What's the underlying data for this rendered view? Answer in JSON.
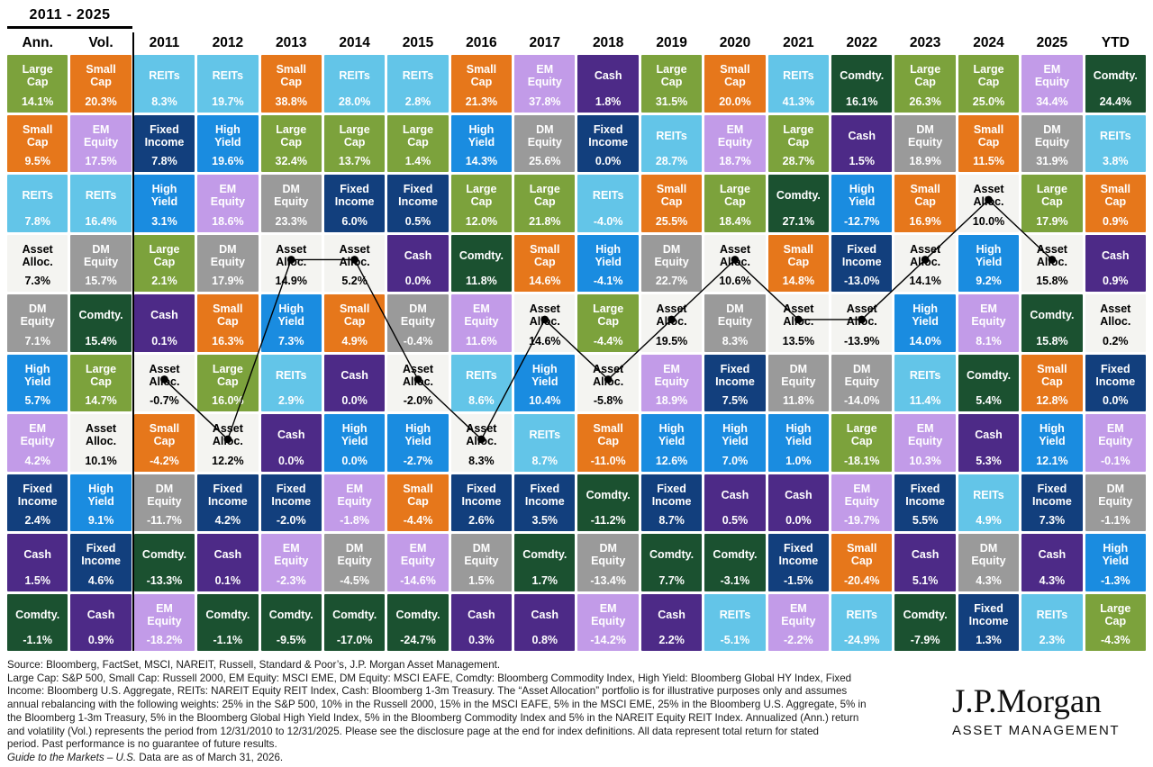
{
  "header": {
    "group_label": "2011 - 2025"
  },
  "asset_styles": {
    "Large Cap": {
      "bg": "#7CA23C",
      "fg": "#FFFFFF"
    },
    "Small Cap": {
      "bg": "#E6771B",
      "fg": "#FFFFFF"
    },
    "REITs": {
      "bg": "#63C5E8",
      "fg": "#FFFFFF"
    },
    "EM Equity": {
      "bg": "#C29BE8",
      "fg": "#FFFFFF"
    },
    "DM Equity": {
      "bg": "#9A9A9A",
      "fg": "#FFFFFF"
    },
    "Fixed Income": {
      "bg": "#123F7D",
      "fg": "#FFFFFF"
    },
    "High Yield": {
      "bg": "#1A8CE0",
      "fg": "#FFFFFF"
    },
    "Cash": {
      "bg": "#4D2A87",
      "fg": "#FFFFFF"
    },
    "Comdty.": {
      "bg": "#1B5130",
      "fg": "#FFFFFF"
    },
    "Asset Alloc.": {
      "bg": "#F4F4F1",
      "fg": "#000000"
    }
  },
  "asset_alloc_line": {
    "color": "#000000",
    "year_columns": [
      "2011",
      "2012",
      "2013",
      "2014",
      "2015",
      "2016",
      "2017",
      "2018",
      "2019",
      "2020",
      "2021",
      "2022",
      "2023",
      "2024",
      "2025"
    ]
  },
  "chart_data": {
    "type": "table",
    "columns": [
      {
        "label": "Ann.",
        "cells": [
          [
            "Large Cap",
            "14.1%"
          ],
          [
            "Small Cap",
            "9.5%"
          ],
          [
            "REITs",
            "7.8%"
          ],
          [
            "Asset Alloc.",
            "7.3%"
          ],
          [
            "DM Equity",
            "7.1%"
          ],
          [
            "High Yield",
            "5.7%"
          ],
          [
            "EM Equity",
            "4.2%"
          ],
          [
            "Fixed Income",
            "2.4%"
          ],
          [
            "Cash",
            "1.5%"
          ],
          [
            "Comdty.",
            "-1.1%"
          ]
        ]
      },
      {
        "label": "Vol.",
        "cells": [
          [
            "Small Cap",
            "20.3%"
          ],
          [
            "EM Equity",
            "17.5%"
          ],
          [
            "REITs",
            "16.4%"
          ],
          [
            "DM Equity",
            "15.7%"
          ],
          [
            "Comdty.",
            "15.4%"
          ],
          [
            "Large Cap",
            "14.7%"
          ],
          [
            "Asset Alloc.",
            "10.1%"
          ],
          [
            "High Yield",
            "9.1%"
          ],
          [
            "Fixed Income",
            "4.6%"
          ],
          [
            "Cash",
            "0.9%"
          ]
        ]
      },
      {
        "label": "2011",
        "cells": [
          [
            "REITs",
            "8.3%"
          ],
          [
            "Fixed Income",
            "7.8%"
          ],
          [
            "High Yield",
            "3.1%"
          ],
          [
            "Large Cap",
            "2.1%"
          ],
          [
            "Cash",
            "0.1%"
          ],
          [
            "Asset Alloc.",
            "-0.7%"
          ],
          [
            "Small Cap",
            "-4.2%"
          ],
          [
            "DM Equity",
            "-11.7%"
          ],
          [
            "Comdty.",
            "-13.3%"
          ],
          [
            "EM Equity",
            "-18.2%"
          ]
        ]
      },
      {
        "label": "2012",
        "cells": [
          [
            "REITs",
            "19.7%"
          ],
          [
            "High Yield",
            "19.6%"
          ],
          [
            "EM Equity",
            "18.6%"
          ],
          [
            "DM Equity",
            "17.9%"
          ],
          [
            "Small Cap",
            "16.3%"
          ],
          [
            "Large Cap",
            "16.0%"
          ],
          [
            "Asset Alloc.",
            "12.2%"
          ],
          [
            "Fixed Income",
            "4.2%"
          ],
          [
            "Cash",
            "0.1%"
          ],
          [
            "Comdty.",
            "-1.1%"
          ]
        ]
      },
      {
        "label": "2013",
        "cells": [
          [
            "Small Cap",
            "38.8%"
          ],
          [
            "Large Cap",
            "32.4%"
          ],
          [
            "DM Equity",
            "23.3%"
          ],
          [
            "Asset Alloc.",
            "14.9%"
          ],
          [
            "High Yield",
            "7.3%"
          ],
          [
            "REITs",
            "2.9%"
          ],
          [
            "Cash",
            "0.0%"
          ],
          [
            "Fixed Income",
            "-2.0%"
          ],
          [
            "EM Equity",
            "-2.3%"
          ],
          [
            "Comdty.",
            "-9.5%"
          ]
        ]
      },
      {
        "label": "2014",
        "cells": [
          [
            "REITs",
            "28.0%"
          ],
          [
            "Large Cap",
            "13.7%"
          ],
          [
            "Fixed Income",
            "6.0%"
          ],
          [
            "Asset Alloc.",
            "5.2%"
          ],
          [
            "Small Cap",
            "4.9%"
          ],
          [
            "Cash",
            "0.0%"
          ],
          [
            "High Yield",
            "0.0%"
          ],
          [
            "EM Equity",
            "-1.8%"
          ],
          [
            "DM Equity",
            "-4.5%"
          ],
          [
            "Comdty.",
            "-17.0%"
          ]
        ]
      },
      {
        "label": "2015",
        "cells": [
          [
            "REITs",
            "2.8%"
          ],
          [
            "Large Cap",
            "1.4%"
          ],
          [
            "Fixed Income",
            "0.5%"
          ],
          [
            "Cash",
            "0.0%"
          ],
          [
            "DM Equity",
            "-0.4%"
          ],
          [
            "Asset Alloc.",
            "-2.0%"
          ],
          [
            "High Yield",
            "-2.7%"
          ],
          [
            "Small Cap",
            "-4.4%"
          ],
          [
            "EM Equity",
            "-14.6%"
          ],
          [
            "Comdty.",
            "-24.7%"
          ]
        ]
      },
      {
        "label": "2016",
        "cells": [
          [
            "Small Cap",
            "21.3%"
          ],
          [
            "High Yield",
            "14.3%"
          ],
          [
            "Large Cap",
            "12.0%"
          ],
          [
            "Comdty.",
            "11.8%"
          ],
          [
            "EM Equity",
            "11.6%"
          ],
          [
            "REITs",
            "8.6%"
          ],
          [
            "Asset Alloc.",
            "8.3%"
          ],
          [
            "Fixed Income",
            "2.6%"
          ],
          [
            "DM Equity",
            "1.5%"
          ],
          [
            "Cash",
            "0.3%"
          ]
        ]
      },
      {
        "label": "2017",
        "cells": [
          [
            "EM Equity",
            "37.8%"
          ],
          [
            "DM Equity",
            "25.6%"
          ],
          [
            "Large Cap",
            "21.8%"
          ],
          [
            "Small Cap",
            "14.6%"
          ],
          [
            "Asset Alloc.",
            "14.6%"
          ],
          [
            "High Yield",
            "10.4%"
          ],
          [
            "REITs",
            "8.7%"
          ],
          [
            "Fixed Income",
            "3.5%"
          ],
          [
            "Comdty.",
            "1.7%"
          ],
          [
            "Cash",
            "0.8%"
          ]
        ]
      },
      {
        "label": "2018",
        "cells": [
          [
            "Cash",
            "1.8%"
          ],
          [
            "Fixed Income",
            "0.0%"
          ],
          [
            "REITs",
            "-4.0%"
          ],
          [
            "High Yield",
            "-4.1%"
          ],
          [
            "Large Cap",
            "-4.4%"
          ],
          [
            "Asset Alloc.",
            "-5.8%"
          ],
          [
            "Small Cap",
            "-11.0%"
          ],
          [
            "Comdty.",
            "-11.2%"
          ],
          [
            "DM Equity",
            "-13.4%"
          ],
          [
            "EM Equity",
            "-14.2%"
          ]
        ]
      },
      {
        "label": "2019",
        "cells": [
          [
            "Large Cap",
            "31.5%"
          ],
          [
            "REITs",
            "28.7%"
          ],
          [
            "Small Cap",
            "25.5%"
          ],
          [
            "DM Equity",
            "22.7%"
          ],
          [
            "Asset Alloc.",
            "19.5%"
          ],
          [
            "EM Equity",
            "18.9%"
          ],
          [
            "High Yield",
            "12.6%"
          ],
          [
            "Fixed Income",
            "8.7%"
          ],
          [
            "Comdty.",
            "7.7%"
          ],
          [
            "Cash",
            "2.2%"
          ]
        ]
      },
      {
        "label": "2020",
        "cells": [
          [
            "Small Cap",
            "20.0%"
          ],
          [
            "EM Equity",
            "18.7%"
          ],
          [
            "Large Cap",
            "18.4%"
          ],
          [
            "Asset Alloc.",
            "10.6%"
          ],
          [
            "DM Equity",
            "8.3%"
          ],
          [
            "Fixed Income",
            "7.5%"
          ],
          [
            "High Yield",
            "7.0%"
          ],
          [
            "Cash",
            "0.5%"
          ],
          [
            "Comdty.",
            "-3.1%"
          ],
          [
            "REITs",
            "-5.1%"
          ]
        ]
      },
      {
        "label": "2021",
        "cells": [
          [
            "REITs",
            "41.3%"
          ],
          [
            "Large Cap",
            "28.7%"
          ],
          [
            "Comdty.",
            "27.1%"
          ],
          [
            "Small Cap",
            "14.8%"
          ],
          [
            "Asset Alloc.",
            "13.5%"
          ],
          [
            "DM Equity",
            "11.8%"
          ],
          [
            "High Yield",
            "1.0%"
          ],
          [
            "Cash",
            "0.0%"
          ],
          [
            "Fixed Income",
            "-1.5%"
          ],
          [
            "EM Equity",
            "-2.2%"
          ]
        ]
      },
      {
        "label": "2022",
        "cells": [
          [
            "Comdty.",
            "16.1%"
          ],
          [
            "Cash",
            "1.5%"
          ],
          [
            "High Yield",
            "-12.7%"
          ],
          [
            "Fixed Income",
            "-13.0%"
          ],
          [
            "Asset Alloc.",
            "-13.9%"
          ],
          [
            "DM Equity",
            "-14.0%"
          ],
          [
            "Large Cap",
            "-18.1%"
          ],
          [
            "EM Equity",
            "-19.7%"
          ],
          [
            "Small Cap",
            "-20.4%"
          ],
          [
            "REITs",
            "-24.9%"
          ]
        ]
      },
      {
        "label": "2023",
        "cells": [
          [
            "Large Cap",
            "26.3%"
          ],
          [
            "DM Equity",
            "18.9%"
          ],
          [
            "Small Cap",
            "16.9%"
          ],
          [
            "Asset Alloc.",
            "14.1%"
          ],
          [
            "High Yield",
            "14.0%"
          ],
          [
            "REITs",
            "11.4%"
          ],
          [
            "EM Equity",
            "10.3%"
          ],
          [
            "Fixed Income",
            "5.5%"
          ],
          [
            "Cash",
            "5.1%"
          ],
          [
            "Comdty.",
            "-7.9%"
          ]
        ]
      },
      {
        "label": "2024",
        "cells": [
          [
            "Large Cap",
            "25.0%"
          ],
          [
            "Small Cap",
            "11.5%"
          ],
          [
            "Asset Alloc.",
            "10.0%"
          ],
          [
            "High Yield",
            "9.2%"
          ],
          [
            "EM Equity",
            "8.1%"
          ],
          [
            "Comdty.",
            "5.4%"
          ],
          [
            "Cash",
            "5.3%"
          ],
          [
            "REITs",
            "4.9%"
          ],
          [
            "DM Equity",
            "4.3%"
          ],
          [
            "Fixed Income",
            "1.3%"
          ]
        ]
      },
      {
        "label": "2025",
        "cells": [
          [
            "EM Equity",
            "34.4%"
          ],
          [
            "DM Equity",
            "31.9%"
          ],
          [
            "Large Cap",
            "17.9%"
          ],
          [
            "Asset Alloc.",
            "15.8%"
          ],
          [
            "Comdty.",
            "15.8%"
          ],
          [
            "Small Cap",
            "12.8%"
          ],
          [
            "High Yield",
            "12.1%"
          ],
          [
            "Fixed Income",
            "7.3%"
          ],
          [
            "Cash",
            "4.3%"
          ],
          [
            "REITs",
            "2.3%"
          ]
        ]
      },
      {
        "label": "YTD",
        "cells": [
          [
            "Comdty.",
            "24.4%"
          ],
          [
            "REITs",
            "3.8%"
          ],
          [
            "Small Cap",
            "0.9%"
          ],
          [
            "Cash",
            "0.9%"
          ],
          [
            "Asset Alloc.",
            "0.2%"
          ],
          [
            "Fixed Income",
            "0.0%"
          ],
          [
            "EM Equity",
            "-0.1%"
          ],
          [
            "DM Equity",
            "-1.1%"
          ],
          [
            "High Yield",
            "-1.3%"
          ],
          [
            "Large Cap",
            "-4.3%"
          ]
        ]
      }
    ]
  },
  "footer": {
    "lines": [
      "Source: Bloomberg, FactSet, MSCI, NAREIT, Russell, Standard & Poor’s, J.P. Morgan Asset Management.",
      "Large Cap: S&P 500, Small Cap: Russell 2000, EM Equity: MSCI EME, DM Equity: MSCI EAFE, Comdty: Bloomberg Commodity Index, High Yield: Bloomberg Global HY Index, Fixed",
      "Income: Bloomberg U.S. Aggregate, REITs: NAREIT Equity REIT Index, Cash: Bloomberg 1-3m Treasury. The “Asset Allocation” portfolio is for illustrative purposes only and assumes",
      "annual rebalancing with the following weights: 25% in the S&P 500, 10% in the Russell 2000, 15% in the MSCI EAFE, 5% in the MSCI EME, 25% in the Bloomberg U.S. Aggregate, 5% in",
      "the Bloomberg 1-3m Treasury, 5% in the Bloomberg Global High Yield Index, 5% in the Bloomberg Commodity Index and 5% in the NAREIT Equity REIT Index. Annualized (Ann.) return",
      "and volatility (Vol.) represents the period from 12/31/2010 to 12/31/2025. Please see the disclosure page at the end for index definitions. All data represent total return for stated",
      "period. Past performance is no guarantee of future results."
    ],
    "gtm_italic": "Guide to the Markets – U.S.",
    "gtm_rest": " Data are as of March 31, 2026."
  },
  "logo": {
    "name": "J.P.Morgan",
    "sub": "ASSET MANAGEMENT"
  }
}
